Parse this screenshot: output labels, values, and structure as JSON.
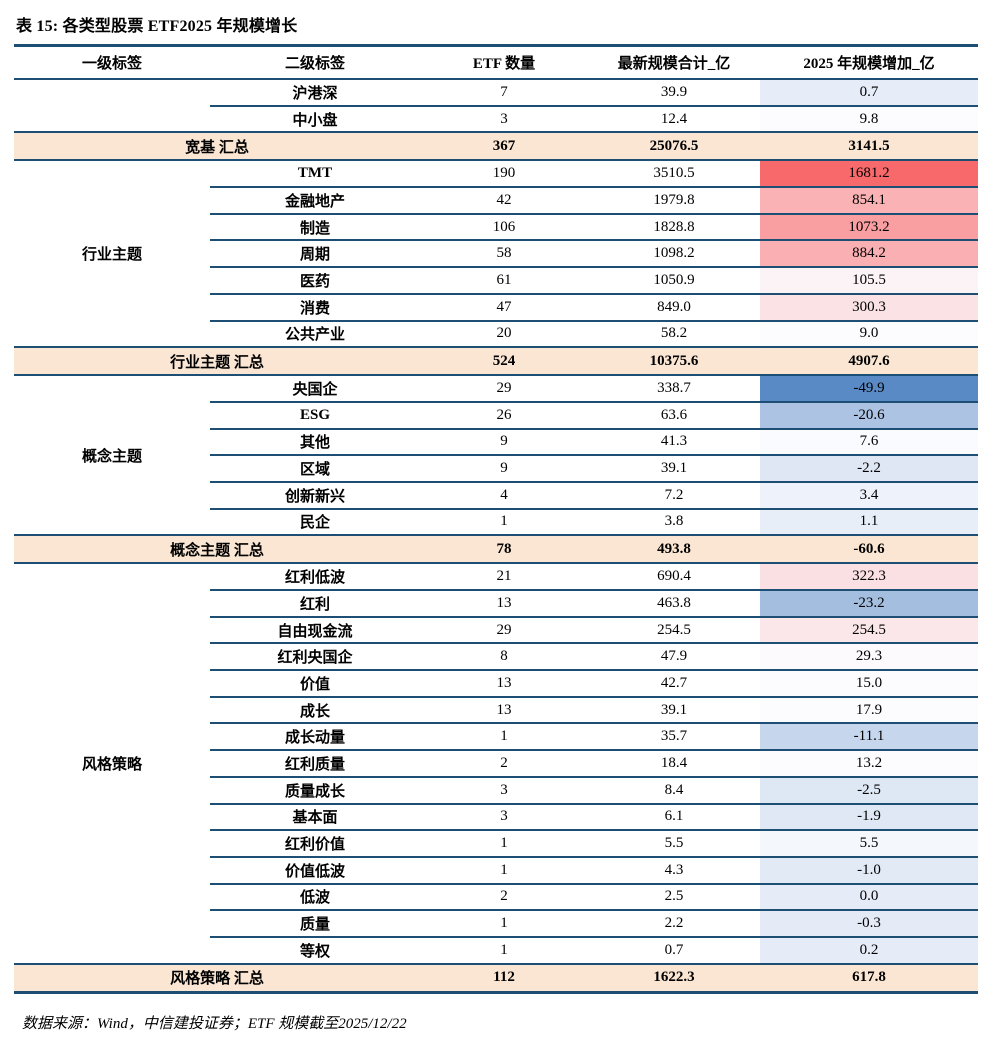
{
  "title": "表 15: 各类型股票 ETF2025 年规模增长",
  "columns": [
    "一级标签",
    "二级标签",
    "ETF 数量",
    "最新规模合计_亿",
    "2025 年规模增加_亿"
  ],
  "groups": [
    {
      "label": "",
      "rows": [
        {
          "sublabel": "沪港深",
          "etf_count": "7",
          "latest_total": "39.9",
          "change_2025": "0.7"
        },
        {
          "sublabel": "中小盘",
          "etf_count": "3",
          "latest_total": "12.4",
          "change_2025": "9.8"
        }
      ],
      "summary": {
        "label": "宽基 汇总",
        "etf_count": "367",
        "latest_total": "25076.5",
        "change_2025": "3141.5"
      }
    },
    {
      "label": "行业主题",
      "rows": [
        {
          "sublabel": "TMT",
          "etf_count": "190",
          "latest_total": "3510.5",
          "change_2025": "1681.2"
        },
        {
          "sublabel": "金融地产",
          "etf_count": "42",
          "latest_total": "1979.8",
          "change_2025": "854.1"
        },
        {
          "sublabel": "制造",
          "etf_count": "106",
          "latest_total": "1828.8",
          "change_2025": "1073.2"
        },
        {
          "sublabel": "周期",
          "etf_count": "58",
          "latest_total": "1098.2",
          "change_2025": "884.2"
        },
        {
          "sublabel": "医药",
          "etf_count": "61",
          "latest_total": "1050.9",
          "change_2025": "105.5"
        },
        {
          "sublabel": "消费",
          "etf_count": "47",
          "latest_total": "849.0",
          "change_2025": "300.3"
        },
        {
          "sublabel": "公共产业",
          "etf_count": "20",
          "latest_total": "58.2",
          "change_2025": "9.0"
        }
      ],
      "summary": {
        "label": "行业主题 汇总",
        "etf_count": "524",
        "latest_total": "10375.6",
        "change_2025": "4907.6"
      }
    },
    {
      "label": "概念主题",
      "rows": [
        {
          "sublabel": "央国企",
          "etf_count": "29",
          "latest_total": "338.7",
          "change_2025": "-49.9"
        },
        {
          "sublabel": "ESG",
          "etf_count": "26",
          "latest_total": "63.6",
          "change_2025": "-20.6"
        },
        {
          "sublabel": "其他",
          "etf_count": "9",
          "latest_total": "41.3",
          "change_2025": "7.6"
        },
        {
          "sublabel": "区域",
          "etf_count": "9",
          "latest_total": "39.1",
          "change_2025": "-2.2"
        },
        {
          "sublabel": "创新新兴",
          "etf_count": "4",
          "latest_total": "7.2",
          "change_2025": "3.4"
        },
        {
          "sublabel": "民企",
          "etf_count": "1",
          "latest_total": "3.8",
          "change_2025": "1.1"
        }
      ],
      "summary": {
        "label": "概念主题 汇总",
        "etf_count": "78",
        "latest_total": "493.8",
        "change_2025": "-60.6"
      }
    },
    {
      "label": "风格策略",
      "rows": [
        {
          "sublabel": "红利低波",
          "etf_count": "21",
          "latest_total": "690.4",
          "change_2025": "322.3"
        },
        {
          "sublabel": "红利",
          "etf_count": "13",
          "latest_total": "463.8",
          "change_2025": "-23.2"
        },
        {
          "sublabel": "自由现金流",
          "etf_count": "29",
          "latest_total": "254.5",
          "change_2025": "254.5"
        },
        {
          "sublabel": "红利央国企",
          "etf_count": "8",
          "latest_total": "47.9",
          "change_2025": "29.3"
        },
        {
          "sublabel": "价值",
          "etf_count": "13",
          "latest_total": "42.7",
          "change_2025": "15.0"
        },
        {
          "sublabel": "成长",
          "etf_count": "13",
          "latest_total": "39.1",
          "change_2025": "17.9"
        },
        {
          "sublabel": "成长动量",
          "etf_count": "1",
          "latest_total": "35.7",
          "change_2025": "-11.1"
        },
        {
          "sublabel": "红利质量",
          "etf_count": "2",
          "latest_total": "18.4",
          "change_2025": "13.2"
        },
        {
          "sublabel": "质量成长",
          "etf_count": "3",
          "latest_total": "8.4",
          "change_2025": "-2.5"
        },
        {
          "sublabel": "基本面",
          "etf_count": "3",
          "latest_total": "6.1",
          "change_2025": "-1.9"
        },
        {
          "sublabel": "红利价值",
          "etf_count": "1",
          "latest_total": "5.5",
          "change_2025": "5.5"
        },
        {
          "sublabel": "价值低波",
          "etf_count": "1",
          "latest_total": "4.3",
          "change_2025": "-1.0"
        },
        {
          "sublabel": "低波",
          "etf_count": "2",
          "latest_total": "2.5",
          "change_2025": "0.0"
        },
        {
          "sublabel": "质量",
          "etf_count": "1",
          "latest_total": "2.2",
          "change_2025": "-0.3"
        },
        {
          "sublabel": "等权",
          "etf_count": "1",
          "latest_total": "0.7",
          "change_2025": "0.2"
        }
      ],
      "summary": {
        "label": "风格策略 汇总",
        "etf_count": "112",
        "latest_total": "1622.3",
        "change_2025": "617.8"
      }
    }
  ],
  "source_note": "数据来源：Wind，中信建投证券；ETF 规模截至2025/12/22",
  "colors": {
    "line": "#1d4e74",
    "summary_bg": "#fae6d3",
    "heat_negative": "#5A8AC6",
    "heat_neutral": "#FCFCFF",
    "heat_positive": "#F8696B"
  },
  "heat_scale": {
    "min": -49.9,
    "mid": 8.3,
    "max": 1681.2
  }
}
